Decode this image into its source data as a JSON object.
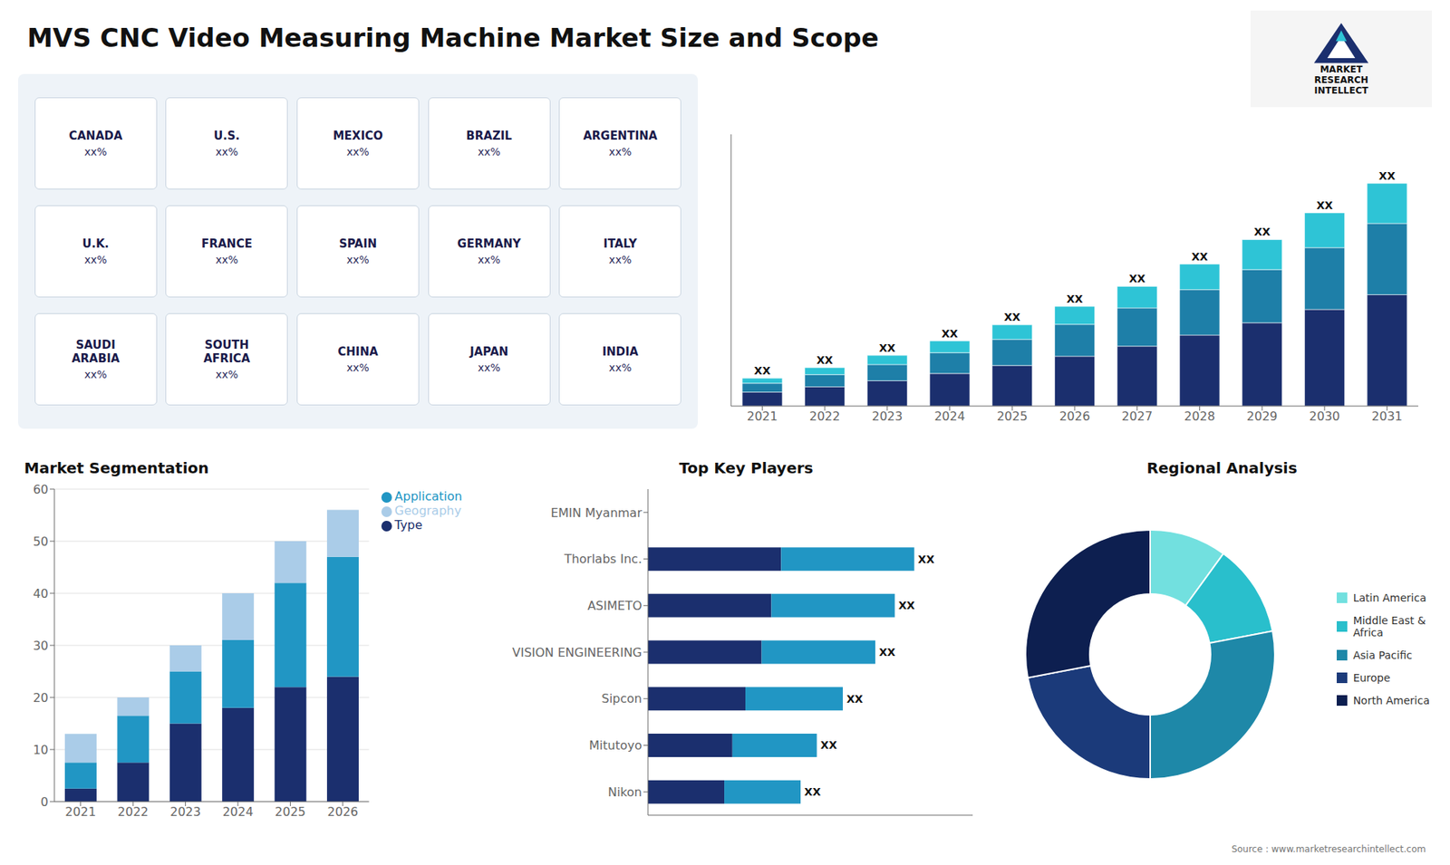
{
  "chart_data": [
    {
      "type": "text",
      "title": "MVS CNC Video Measuring Machine Market Size and Scope",
      "annotations": [
        "Source : www.marketresearchintellect.com"
      ]
    },
    {
      "type": "map",
      "annotations": [
        [
          "CANADA",
          "xx%"
        ],
        [
          "U.S.",
          "xx%"
        ],
        [
          "MEXICO",
          "xx%"
        ],
        [
          "BRAZIL",
          "xx%"
        ],
        [
          "ARGENTINA",
          "xx%"
        ],
        [
          "U.K.",
          "xx%"
        ],
        [
          "FRANCE",
          "xx%"
        ],
        [
          "SPAIN",
          "xx%"
        ],
        [
          "GERMANY",
          "xx%"
        ],
        [
          "ITALY",
          "xx%"
        ],
        [
          "SAUDI\nARABIA",
          "xx%"
        ],
        [
          "SOUTH\nAFRICA",
          "xx%"
        ],
        [
          "CHINA",
          "xx%"
        ],
        [
          "JAPAN",
          "xx%"
        ],
        [
          "INDIA",
          "xx%"
        ]
      ]
    },
    {
      "type": "bar",
      "stacked": true,
      "tick_labels": "x",
      "grid": false,
      "categories": [
        "2021",
        "2022",
        "2023",
        "2024",
        "2025",
        "2026",
        "2027",
        "2028",
        "2029",
        "2030",
        "2031"
      ],
      "series": [
        {
          "color": "#1b2f6e",
          "values": [
            0.5,
            0.69,
            0.91,
            1.17,
            1.46,
            1.79,
            2.15,
            2.55,
            2.99,
            3.47,
            4.0
          ]
        },
        {
          "color": "#1e7fa8",
          "values": [
            0.32,
            0.4416,
            0.5824,
            0.7488,
            0.9344,
            1.1456,
            1.376,
            1.632,
            1.9136,
            2.2208,
            2.56
          ]
        },
        {
          "color": "#2ec4d6",
          "values": [
            0.18,
            0.2484,
            0.3276,
            0.4212,
            0.5256,
            0.6444,
            0.774,
            0.918,
            1.0764,
            1.2492,
            1.44
          ]
        }
      ],
      "annotations": [
        "XX",
        "XX",
        "XX",
        "XX",
        "XX",
        "XX",
        "XX",
        "XX",
        "XX",
        "XX",
        "XX"
      ],
      "ylim": [
        0,
        9.76
      ]
    },
    {
      "type": "bar",
      "stacked": true,
      "title": "Market Segmentation",
      "grid": true,
      "legend": "right",
      "categories": [
        "2021",
        "2022",
        "2023",
        "2024",
        "2025",
        "2026"
      ],
      "series": [
        {
          "name": "Type",
          "color": "#1b2f6e",
          "values": [
            2.5,
            7.5,
            15.0,
            18.0,
            22.0,
            24.0
          ]
        },
        {
          "name": "Application",
          "color": "#2196c4",
          "values": [
            5.0,
            9.0,
            10.0,
            13.0,
            20.0,
            23.0
          ]
        },
        {
          "name": "Geography",
          "color": "#aacce8",
          "values": [
            5.5,
            3.5,
            5.0,
            9.0,
            8.0,
            9.0
          ]
        }
      ],
      "ylim": [
        0,
        60
      ],
      "yticks": [
        0,
        10,
        20,
        30,
        40,
        50,
        60
      ]
    },
    {
      "type": "bar",
      "stacked": true,
      "orientation": "horizontal",
      "title": "Top Key Players",
      "tick_labels": "y",
      "grid": false,
      "categories": [
        "EMIN Myanmar",
        "Thorlabs Inc.",
        "ASIMETO",
        "VISION ENGINEERING",
        "Sipcon",
        "Mitutoyo",
        "Nikon"
      ],
      "series": [
        {
          "color": "#1b2f6e",
          "values": [
            0.0,
            0.41,
            0.38,
            0.35,
            0.3,
            0.26,
            0.235
          ]
        },
        {
          "color": "#2196c4",
          "values": [
            0.0,
            0.41,
            0.38,
            0.35,
            0.3,
            0.26,
            0.235
          ]
        }
      ],
      "annotations": [
        null,
        "XX",
        "XX",
        "XX",
        "XX",
        "XX",
        "XX"
      ],
      "xlim": [
        0,
        1
      ]
    },
    {
      "type": "pie",
      "title": "Regional Analysis",
      "legend": "right",
      "categories": [
        "Latin America",
        "Middle East &\nAfrica",
        "Asia Pacific",
        "Europe",
        "North America"
      ],
      "values": [
        0.1,
        0.12,
        0.28,
        0.22,
        0.28
      ],
      "colors": [
        "#72e0df",
        "#29bfcc",
        "#1e88a8",
        "#1b3a7a",
        "#0d1f50"
      ]
    },
    {
      "type": "logo",
      "annotations": [
        "MARKET",
        "RESEARCH",
        "INTELLECT"
      ]
    }
  ]
}
